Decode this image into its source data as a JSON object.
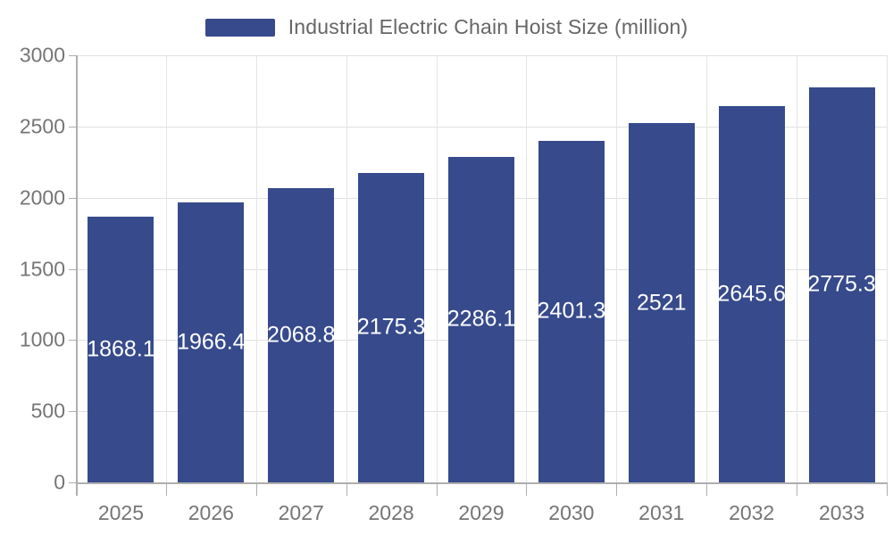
{
  "chart_data": {
    "type": "bar",
    "title": "Industrial Electric Chain Hoist Size (million)",
    "legend": {
      "label": "Industrial Electric Chain Hoist Size (million)",
      "position": "top-center"
    },
    "categories": [
      "2025",
      "2026",
      "2027",
      "2028",
      "2029",
      "2030",
      "2031",
      "2032",
      "2033"
    ],
    "values": [
      1868.1,
      1966.4,
      2068.8,
      2175.3,
      2286.1,
      2401.3,
      2521,
      2645.6,
      2775.3
    ],
    "value_labels": [
      "1868.1",
      "1966.4",
      "2068.8",
      "2175.3",
      "2286.1",
      "2401.3",
      "2521",
      "2645.6",
      "2775.3"
    ],
    "xlabel": "",
    "ylabel": "",
    "ylim": [
      0,
      3000
    ],
    "y_ticks": [
      0,
      500,
      1000,
      1500,
      2000,
      2500,
      3000
    ],
    "y_tick_labels": [
      "0",
      "500",
      "1000",
      "1500",
      "2000",
      "2500",
      "3000"
    ],
    "grid": true,
    "colors": {
      "bar": "#374A8C",
      "grid_horizontal": "#e0e0e0",
      "grid_vertical": "#e4e4e4",
      "axis_line": "#aeaeae",
      "tick_mark": "#aeaeae",
      "tick_label": "#757575",
      "legend_text": "#666666",
      "value_label": "#ffffff",
      "background": "#ffffff"
    }
  }
}
